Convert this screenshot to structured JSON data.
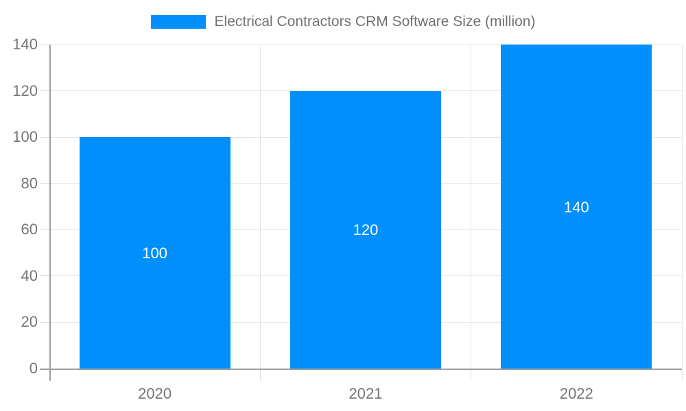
{
  "legend": {
    "label": "Electrical Contractors CRM Software Size (million)"
  },
  "chart_data": {
    "type": "bar",
    "title": "Electrical Contractors CRM Software Size (million)",
    "series": [
      {
        "name": "Electrical Contractors CRM Software Size (million)",
        "values": [
          100,
          120,
          140
        ]
      }
    ],
    "categories": [
      "2020",
      "2021",
      "2022"
    ],
    "values": [
      100,
      120,
      140
    ],
    "bar_value_labels": [
      "100",
      "120",
      "140"
    ],
    "xlabel": "",
    "ylabel": "",
    "ylim": [
      0,
      140
    ],
    "yticks": [
      0,
      20,
      40,
      60,
      80,
      100,
      120,
      140
    ],
    "grid": true,
    "legend_position": "top",
    "colors": {
      "bar": "#008FFB",
      "bar_label": "#FFFFFF",
      "axis_line": "#9E9E9E",
      "gridline": "#E4E4E4",
      "tick_mark": "#DCDCDC",
      "tick_label": "#757575",
      "legend_text": "#717171",
      "background": "#FFFFFF"
    }
  }
}
